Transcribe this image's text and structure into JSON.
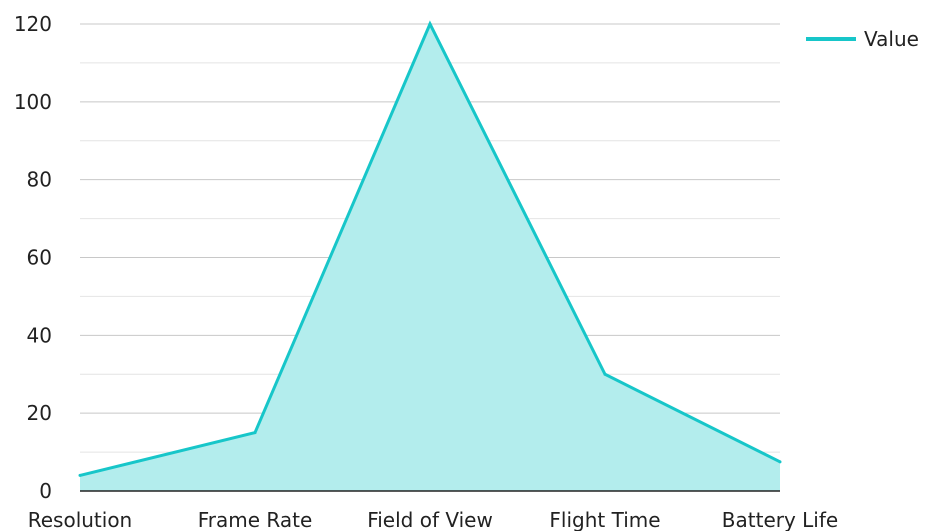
{
  "chart_data": {
    "type": "area",
    "categories": [
      "Resolution",
      "Frame Rate",
      "Field of View",
      "Flight Time",
      "Battery Life"
    ],
    "series": [
      {
        "name": "Value",
        "values": [
          4,
          15,
          120,
          30,
          7.5
        ],
        "color": "#17c6c9",
        "fill": "#b3eded"
      }
    ],
    "title": "",
    "xlabel": "",
    "ylabel": "",
    "ylim": [
      0,
      120
    ],
    "yticks": [
      0,
      20,
      40,
      60,
      80,
      100,
      120
    ],
    "grid": true,
    "minor_grid": true,
    "legend": "top-right",
    "colors": {
      "major_grid": "#c8c8c8",
      "minor_grid": "#e4e4e4",
      "axis": "#222222",
      "text": "#222222"
    }
  }
}
